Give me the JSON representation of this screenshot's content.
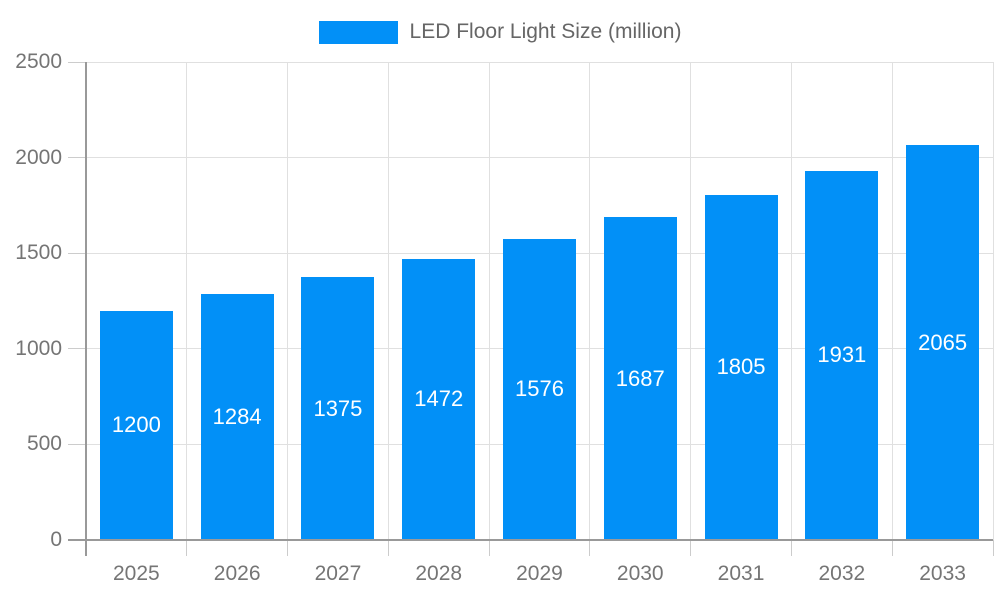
{
  "legend": {
    "label": "LED Floor Light Size (million)"
  },
  "chart_data": {
    "type": "bar",
    "title": "LED Floor Light Size (million)",
    "categories": [
      "2025",
      "2026",
      "2027",
      "2028",
      "2029",
      "2030",
      "2031",
      "2032",
      "2033"
    ],
    "values": [
      1200,
      1284,
      1375,
      1472,
      1576,
      1687,
      1805,
      1931,
      2065
    ],
    "value_labels": [
      "1200",
      "1284",
      "1375",
      "1472",
      "1576",
      "1687",
      "1805",
      "1931",
      "2065"
    ],
    "xlabel": "",
    "ylabel": "",
    "ylim": [
      0,
      2500
    ],
    "yticks": [
      0,
      500,
      1000,
      1500,
      2000,
      2500
    ],
    "ytick_labels": [
      "0",
      "500",
      "1000",
      "1500",
      "2000",
      "2500"
    ],
    "grid": true,
    "legend_position": "top-center",
    "colors": {
      "bar": "#0290F7",
      "value_label": "#FFFFFF",
      "axis_line": "#999999",
      "gridline": "#E0E0E0",
      "tick_mark": "#CCCCCC",
      "tick_label": "#757575",
      "legend_text": "#666666"
    }
  }
}
